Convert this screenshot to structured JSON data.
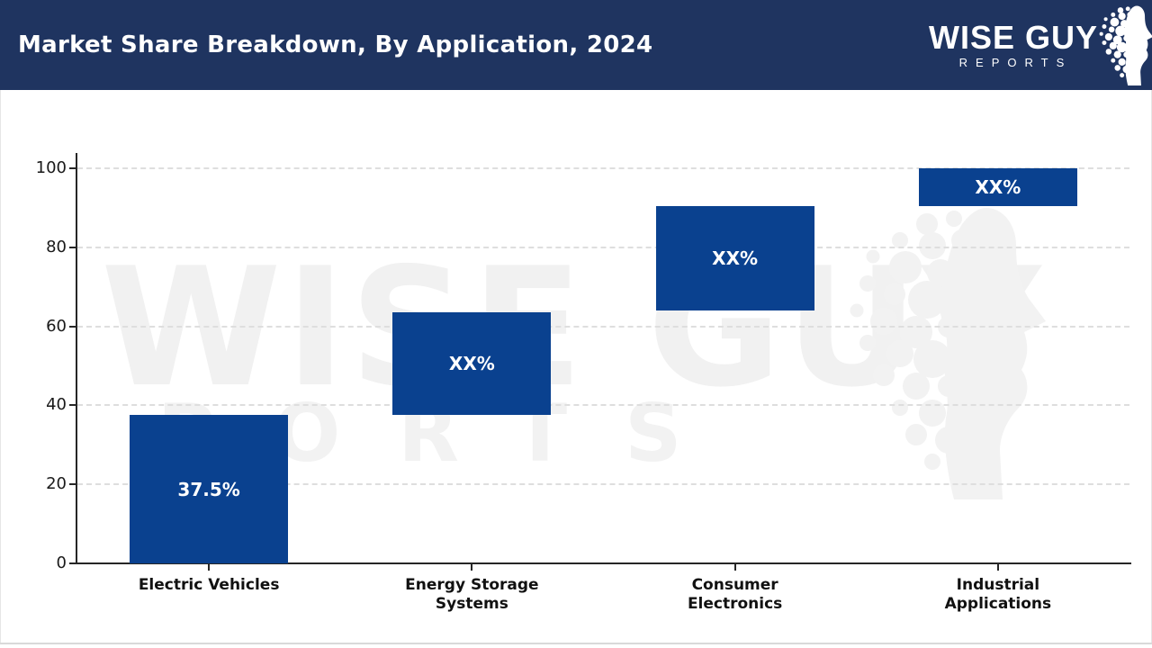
{
  "header": {
    "title": "Market Share Breakdown, By Application, 2024",
    "bg_color": "#1f3460",
    "logo": {
      "line1": "WISE GUY",
      "line2": "REPORTS"
    }
  },
  "watermark": {
    "line1": "WISE GUY",
    "line2": "PORTS"
  },
  "chart_data": {
    "type": "bar",
    "subtype": "waterfall-floating-bars",
    "title": "Market Share Breakdown, By Application, 2024",
    "categories": [
      "Electric Vehicles",
      "Energy Storage\nSystems",
      "Consumer\nElectronics",
      "Industrial\nApplications"
    ],
    "segments": [
      {
        "category": "Electric Vehicles",
        "start": 0,
        "end": 37.5,
        "label": "37.5%"
      },
      {
        "category": "Energy Storage Systems",
        "start": 37.5,
        "end": 63.5,
        "label": "XX%"
      },
      {
        "category": "Consumer Electronics",
        "start": 64,
        "end": 90.5,
        "label": "XX%"
      },
      {
        "category": "Industrial Applications",
        "start": 90.5,
        "end": 100,
        "label": "XX%"
      }
    ],
    "ylim": [
      0,
      100
    ],
    "yticks": [
      0,
      20,
      40,
      60,
      80,
      100
    ],
    "grid": "horizontal-dashed",
    "legend": "none",
    "bar_color": "#0a418f",
    "label_color": "#ffffff"
  }
}
